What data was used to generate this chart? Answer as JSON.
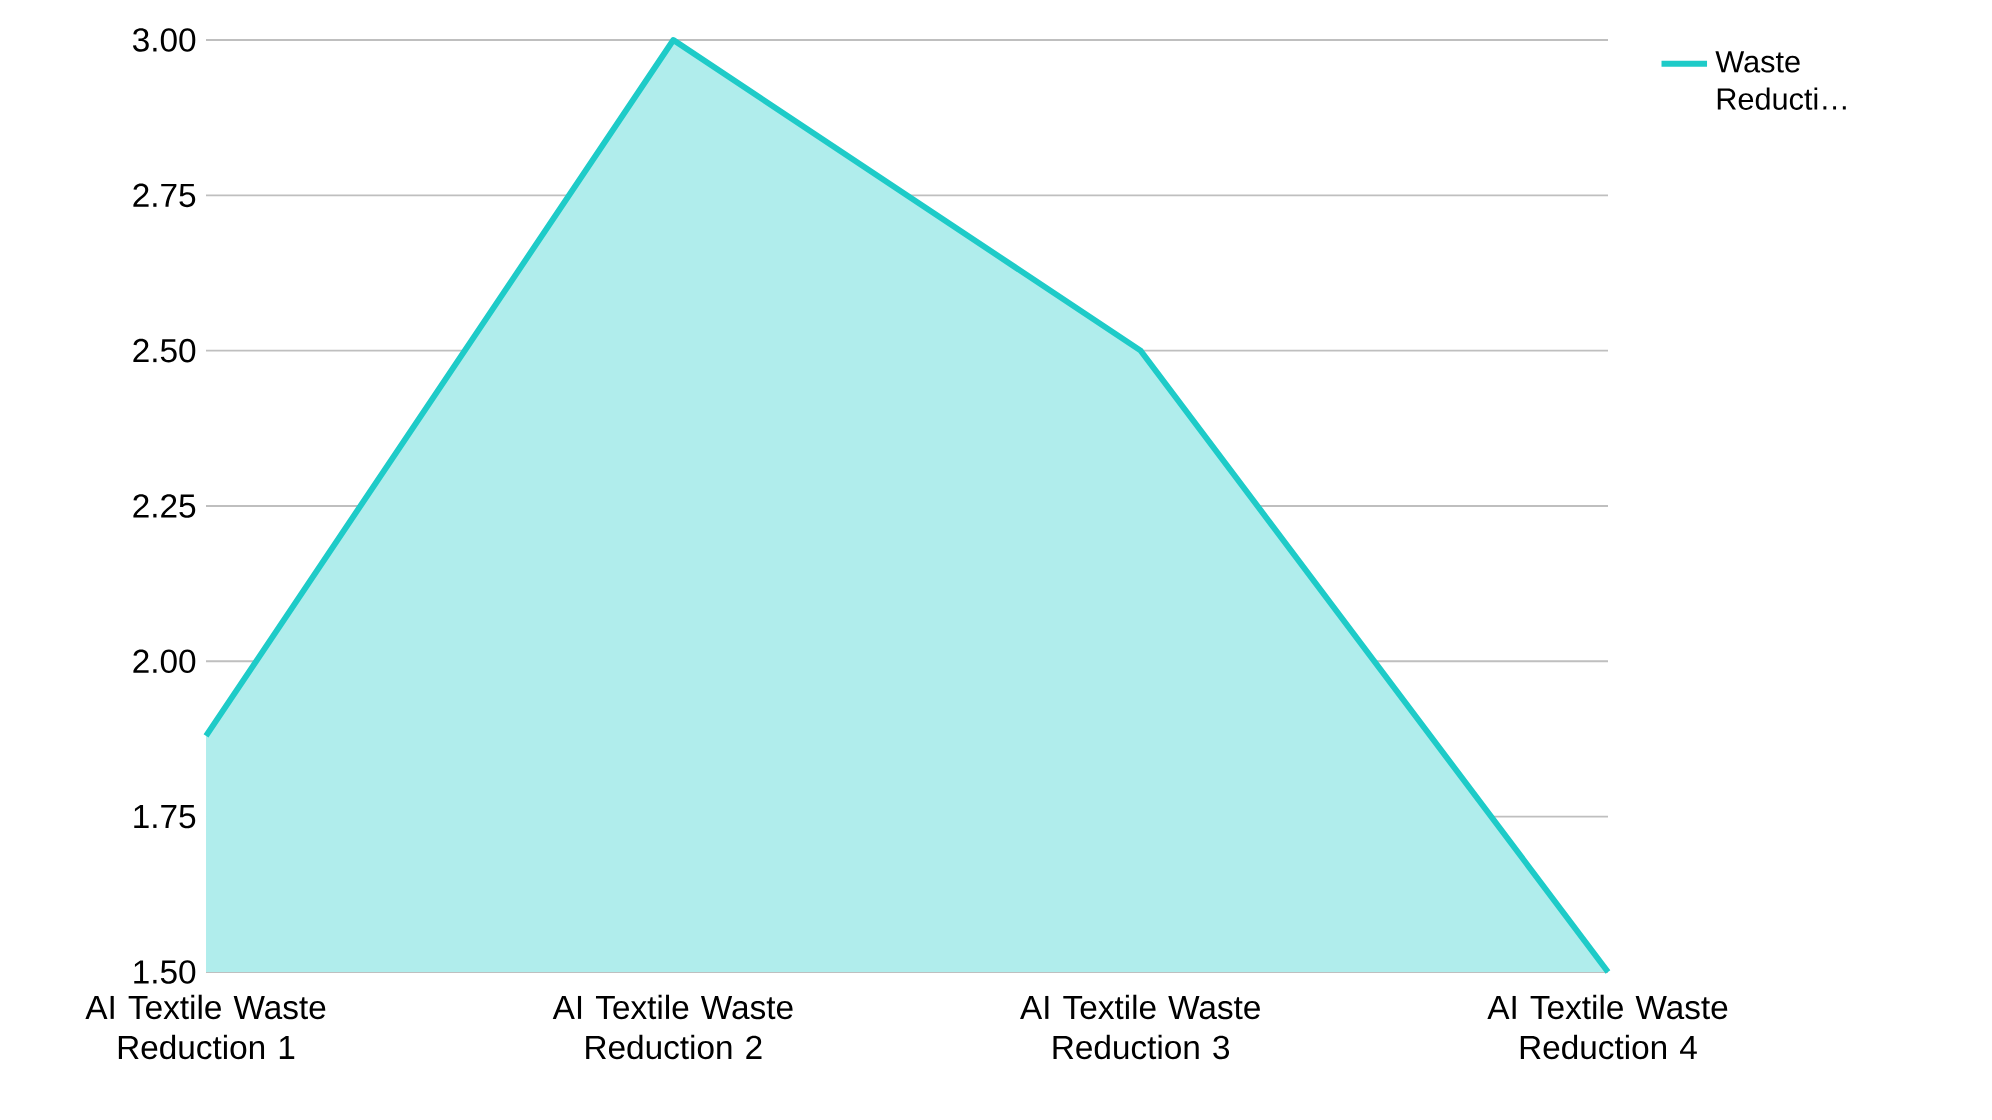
{
  "chart_data": {
    "type": "area",
    "categories": [
      "AI Textile Waste Reduction 1",
      "AI Textile Waste Reduction 2",
      "AI Textile Waste Reduction 3",
      "AI Textile Waste Reduction 4"
    ],
    "series": [
      {
        "name": "Waste Reducti…",
        "color": "#1ecbc8",
        "values": [
          1.88,
          3.0,
          2.5,
          1.5
        ]
      }
    ],
    "ylim": [
      1.5,
      3.0
    ],
    "yticks": [
      {
        "value": 1.5,
        "label": "1.50"
      },
      {
        "value": 1.75,
        "label": "1.75"
      },
      {
        "value": 2.0,
        "label": "2.00"
      },
      {
        "value": 2.25,
        "label": "2.25"
      },
      {
        "value": 2.5,
        "label": "2.50"
      },
      {
        "value": 2.75,
        "label": "2.75"
      },
      {
        "value": 3.0,
        "label": "3.00"
      }
    ],
    "grid": "y",
    "legend": "right"
  }
}
